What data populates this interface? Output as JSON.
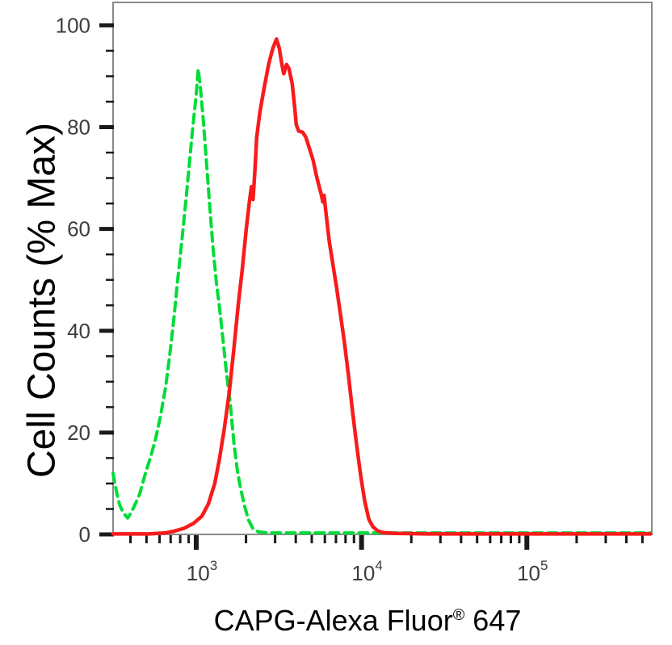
{
  "figure": {
    "xlabel_main": "CAPG-Alexa Fluor",
    "xlabel_reg": "®",
    "xlabel_suffix": "647"
  },
  "chart_data": {
    "type": "line",
    "subtype": "flow-cytometry-overlay-histogram",
    "title": "",
    "xlabel": "CAPG-Alexa Fluor® 647",
    "ylabel": "Cell Counts (% Max)",
    "x_scale": "log10",
    "y_scale": "linear",
    "xlim": [
      314,
      570000
    ],
    "ylim": [
      0,
      104.5
    ],
    "grid": false,
    "legend": "none",
    "background": "#ffffff",
    "axis_color": "#8a8a8a",
    "tick_color": "#1a1a1a",
    "tick_label_color": "#3d3d3d",
    "x_major_ticks": [
      {
        "value": 1000,
        "base": "10",
        "exponent": "3"
      },
      {
        "value": 10000,
        "base": "10",
        "exponent": "4"
      },
      {
        "value": 100000,
        "base": "10",
        "exponent": "5"
      }
    ],
    "x_minor_ticks_per_decade": [
      2,
      3,
      4,
      5,
      6,
      7,
      8,
      9
    ],
    "y_major_ticks": [
      0,
      20,
      40,
      60,
      80,
      100
    ],
    "y_minor_step": 5,
    "series": [
      {
        "name": "green-dashed-histogram",
        "color": "#00dc38",
        "line_style": "dashed",
        "line_width": 4,
        "dash_pattern": [
          11,
          7
        ],
        "peak": {
          "x": 1028,
          "y": 91.4
        },
        "points": [
          [
            314,
            12
          ],
          [
            322,
            10
          ],
          [
            332,
            7.8
          ],
          [
            344,
            5.8
          ],
          [
            360,
            4.4
          ],
          [
            385,
            3.2
          ],
          [
            407,
            4.5
          ],
          [
            431,
            6.2
          ],
          [
            455,
            8
          ],
          [
            493,
            12
          ],
          [
            533,
            15.5
          ],
          [
            570,
            19
          ],
          [
            610,
            23.5
          ],
          [
            653,
            29
          ],
          [
            690,
            35
          ],
          [
            730,
            42
          ],
          [
            772,
            50
          ],
          [
            826,
            59
          ],
          [
            874,
            67
          ],
          [
            925,
            75.5
          ],
          [
            967,
            82
          ],
          [
            1000,
            86.5
          ],
          [
            1028,
            91.4
          ],
          [
            1058,
            88
          ],
          [
            1106,
            81
          ],
          [
            1157,
            72.5
          ],
          [
            1210,
            64
          ],
          [
            1266,
            56
          ],
          [
            1324,
            49.5
          ],
          [
            1401,
            43
          ],
          [
            1465,
            37
          ],
          [
            1532,
            31
          ],
          [
            1603,
            26
          ],
          [
            1696,
            17.5
          ],
          [
            1774,
            12.5
          ],
          [
            1855,
            9
          ],
          [
            1962,
            5.5
          ],
          [
            2075,
            2.8
          ],
          [
            2196,
            1.2
          ],
          [
            2375,
            0.5
          ],
          [
            2700,
            0.3
          ],
          [
            5000,
            0.3
          ],
          [
            12000,
            0.3
          ],
          [
            30000,
            0.3
          ],
          [
            80000,
            0.3
          ],
          [
            200000,
            0.3
          ],
          [
            560000,
            0.3
          ]
        ]
      },
      {
        "name": "red-solid-histogram",
        "color": "#f81b1b",
        "line_style": "solid",
        "line_width": 4.5,
        "peak": {
          "x": 3059,
          "y": 97.3
        },
        "points": [
          [
            314,
            0.1
          ],
          [
            520,
            0.1
          ],
          [
            652,
            0.3
          ],
          [
            730,
            0.6
          ],
          [
            845,
            1.2
          ],
          [
            967,
            2.2
          ],
          [
            1082,
            3.6
          ],
          [
            1184,
            6
          ],
          [
            1295,
            10
          ],
          [
            1385,
            15
          ],
          [
            1482,
            21
          ],
          [
            1585,
            28
          ],
          [
            1696,
            37
          ],
          [
            1794,
            45
          ],
          [
            1897,
            52
          ],
          [
            2007,
            60
          ],
          [
            2099,
            65.5
          ],
          [
            2158,
            68.3
          ],
          [
            2207,
            65.8
          ],
          [
            2270,
            72
          ],
          [
            2322,
            78
          ],
          [
            2429,
            83
          ],
          [
            2569,
            87.5
          ],
          [
            2748,
            92.5
          ],
          [
            2906,
            95.5
          ],
          [
            3059,
            97.3
          ],
          [
            3180,
            95.5
          ],
          [
            3289,
            92.5
          ],
          [
            3383,
            90.5
          ],
          [
            3519,
            92.3
          ],
          [
            3640,
            91.5
          ],
          [
            3806,
            88.5
          ],
          [
            3936,
            84
          ],
          [
            4026,
            80.5
          ],
          [
            4165,
            79.2
          ],
          [
            4404,
            79
          ],
          [
            4607,
            78
          ],
          [
            4818,
            76
          ],
          [
            5096,
            73.5
          ],
          [
            5330,
            70.5
          ],
          [
            5576,
            68
          ],
          [
            5702,
            66.8
          ],
          [
            5831,
            65.3
          ],
          [
            5930,
            66.6
          ],
          [
            6100,
            63
          ],
          [
            6382,
            57.5
          ],
          [
            6675,
            53.5
          ],
          [
            7060,
            48.5
          ],
          [
            7467,
            43
          ],
          [
            7897,
            37.5
          ],
          [
            8352,
            31
          ],
          [
            8837,
            24
          ],
          [
            9348,
            17.5
          ],
          [
            9888,
            11.5
          ],
          [
            10460,
            6.5
          ],
          [
            11064,
            3
          ],
          [
            11703,
            1.5
          ],
          [
            12521,
            0.7
          ],
          [
            13546,
            0.35
          ],
          [
            16000,
            0.2
          ],
          [
            25000,
            0.1
          ],
          [
            80000,
            0.1
          ],
          [
            250000,
            0.1
          ],
          [
            560000,
            0.1
          ]
        ]
      }
    ]
  }
}
